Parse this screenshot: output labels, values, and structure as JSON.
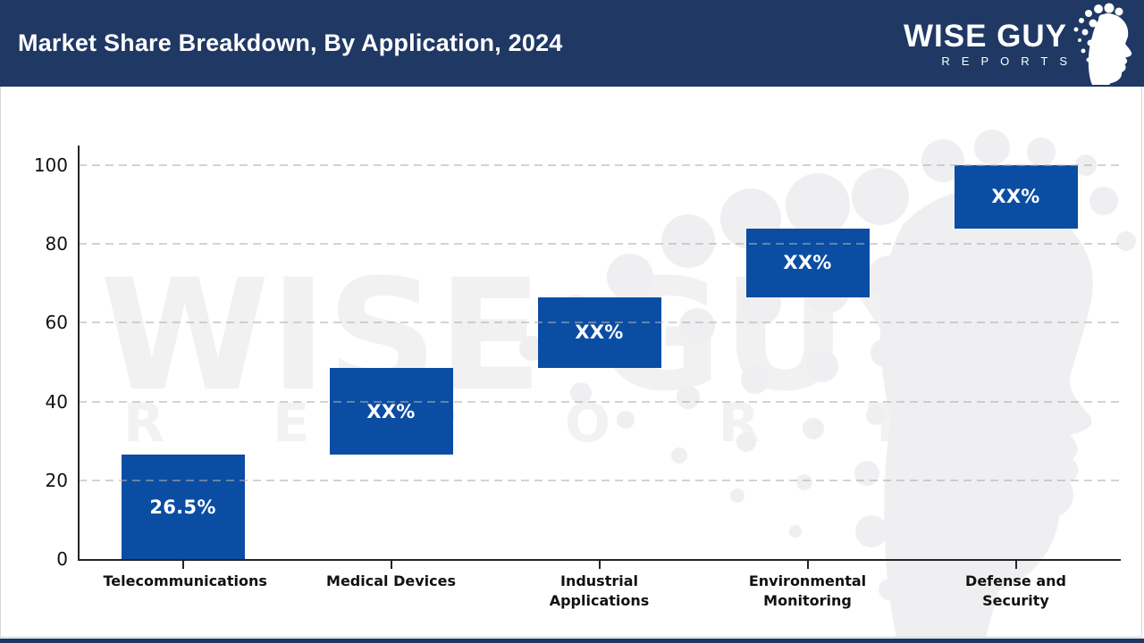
{
  "header": {
    "title": "Market Share Breakdown, By Application, 2024",
    "logo": {
      "line1": "WISE GUY",
      "line2": "REPORTS"
    },
    "bg_color": "#1f3864"
  },
  "watermark": {
    "line1": "WISE GUY",
    "line2": "REPORTS"
  },
  "colors": {
    "bar": "#0b4da2",
    "header_navy": "#1f3864",
    "gridline": "#d9d9d9",
    "axis": "#242424",
    "watermark": "#f1f1f2",
    "value_label": "#ffffff"
  },
  "chart_data": {
    "type": "bar",
    "subtype": "floating-waterfall",
    "title": "Market Share Breakdown, By Application, 2024",
    "categories": [
      "Telecommunications",
      "Medical Devices",
      "Industrial Applications",
      "Environmental Monitoring",
      "Defense and Security"
    ],
    "segments": [
      {
        "category": "Telecommunications",
        "start": 0,
        "end": 26.5,
        "label": "26.5%"
      },
      {
        "category": "Medical Devices",
        "start": 26.5,
        "end": 48.5,
        "label": "XX%"
      },
      {
        "category": "Industrial Applications",
        "start": 48.5,
        "end": 66.5,
        "label": "XX%"
      },
      {
        "category": "Environmental Monitoring",
        "start": 66.5,
        "end": 84,
        "label": "XX%"
      },
      {
        "category": "Defense and Security",
        "start": 84,
        "end": 100,
        "label": "XX%"
      }
    ],
    "xlabel": "",
    "ylabel": "",
    "ylim": [
      0,
      100
    ],
    "yticks": [
      0,
      20,
      40,
      60,
      80,
      100
    ],
    "grid": true,
    "grid_style": "dashed",
    "legend": "none"
  }
}
